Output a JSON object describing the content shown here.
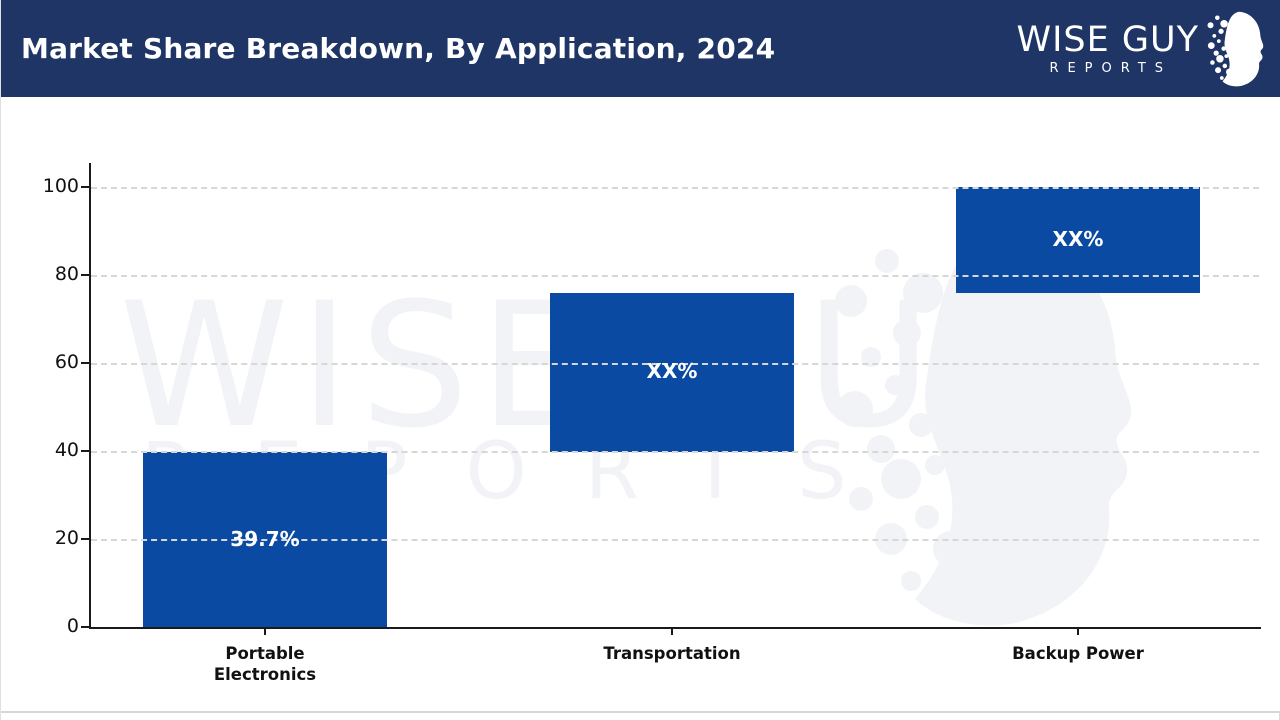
{
  "header": {
    "title": "Market Share Breakdown, By Application, 2024",
    "background_color": "#1f3565"
  },
  "logo": {
    "line1": "WISE GUY",
    "line2": "REPORTS",
    "face_icon": "dotted-face-profile"
  },
  "watermark": {
    "line1": "WISE GUY",
    "line2": "REPORTS",
    "face_icon": "dotted-face-profile"
  },
  "chart_data": {
    "type": "bar",
    "subtype": "waterfall",
    "title": "Market Share Breakdown, By Application, 2024",
    "categories": [
      "Portable Electronics",
      "Transportation",
      "Backup Power"
    ],
    "segments": [
      {
        "category": "Portable Electronics",
        "start": 0,
        "end": 39.7,
        "label": "39.7%"
      },
      {
        "category": "Transportation",
        "start": 39.7,
        "end": 76,
        "label": "XX%"
      },
      {
        "category": "Backup Power",
        "start": 76,
        "end": 100,
        "label": "XX%"
      }
    ],
    "xlabel": "",
    "ylabel": "",
    "ylim": [
      0,
      105
    ],
    "yticks": [
      0,
      20,
      40,
      60,
      80,
      100
    ],
    "grid": "horizontal-dashed-over-bars",
    "legend": "none",
    "bar_color": "#0b4aa2",
    "bar_label_color": "#ffffff",
    "gridline_color": "#d7d7d7"
  }
}
